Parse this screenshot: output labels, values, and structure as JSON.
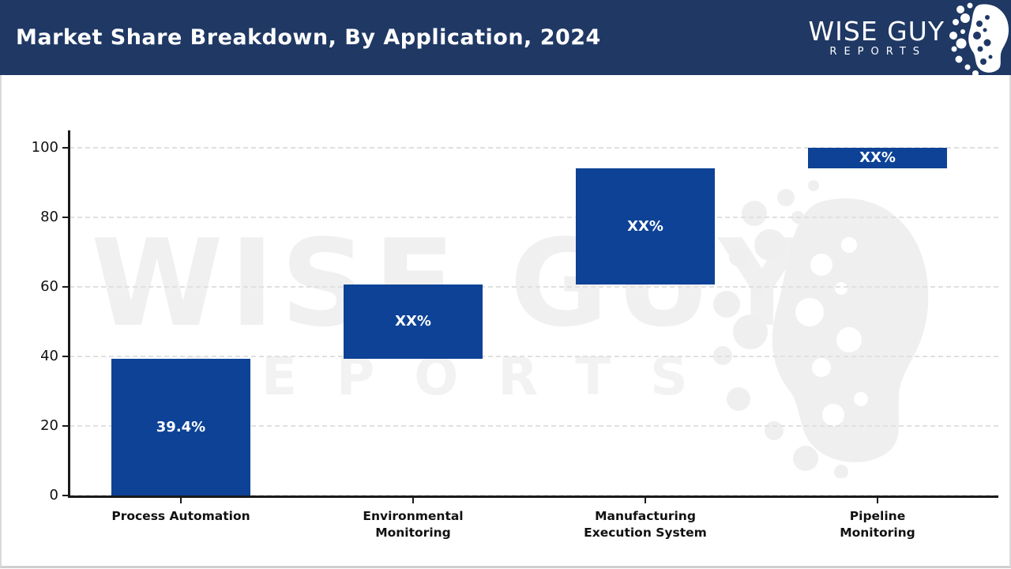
{
  "header": {
    "title": "Market Share Breakdown, By Application, 2024",
    "bg_color": "#1f3864",
    "brand": {
      "line1": "WISE GUY",
      "line2": "REPORTS"
    }
  },
  "watermark": {
    "line1": "WISE GUY",
    "line2": "REPORTS"
  },
  "chart_data": {
    "type": "bar",
    "subtype": "waterfall",
    "title": "Market Share Breakdown, By Application, 2024",
    "categories": [
      "Process Automation",
      "Environmental\nMonitoring",
      "Manufacturing\nExecution System",
      "Pipeline\nMonitoring"
    ],
    "segments": [
      {
        "category": "Process Automation",
        "start": 0,
        "end": 39.4,
        "value_label": "39.4%"
      },
      {
        "category": "Environmental Monitoring",
        "start": 39.4,
        "end": 60.6,
        "value_label": "XX%"
      },
      {
        "category": "Manufacturing Execution System",
        "start": 60.6,
        "end": 94.1,
        "value_label": "XX%"
      },
      {
        "category": "Pipeline Monitoring",
        "start": 94.1,
        "end": 100,
        "value_label": "XX%"
      }
    ],
    "bar_color": "#0d4296",
    "value_label_color": "#ffffff",
    "y_ticks": [
      0,
      20,
      40,
      60,
      80,
      100
    ],
    "ylim": [
      0,
      105
    ],
    "xlabel": "",
    "ylabel": "",
    "grid": "horizontal-dashed",
    "legend": "none"
  }
}
